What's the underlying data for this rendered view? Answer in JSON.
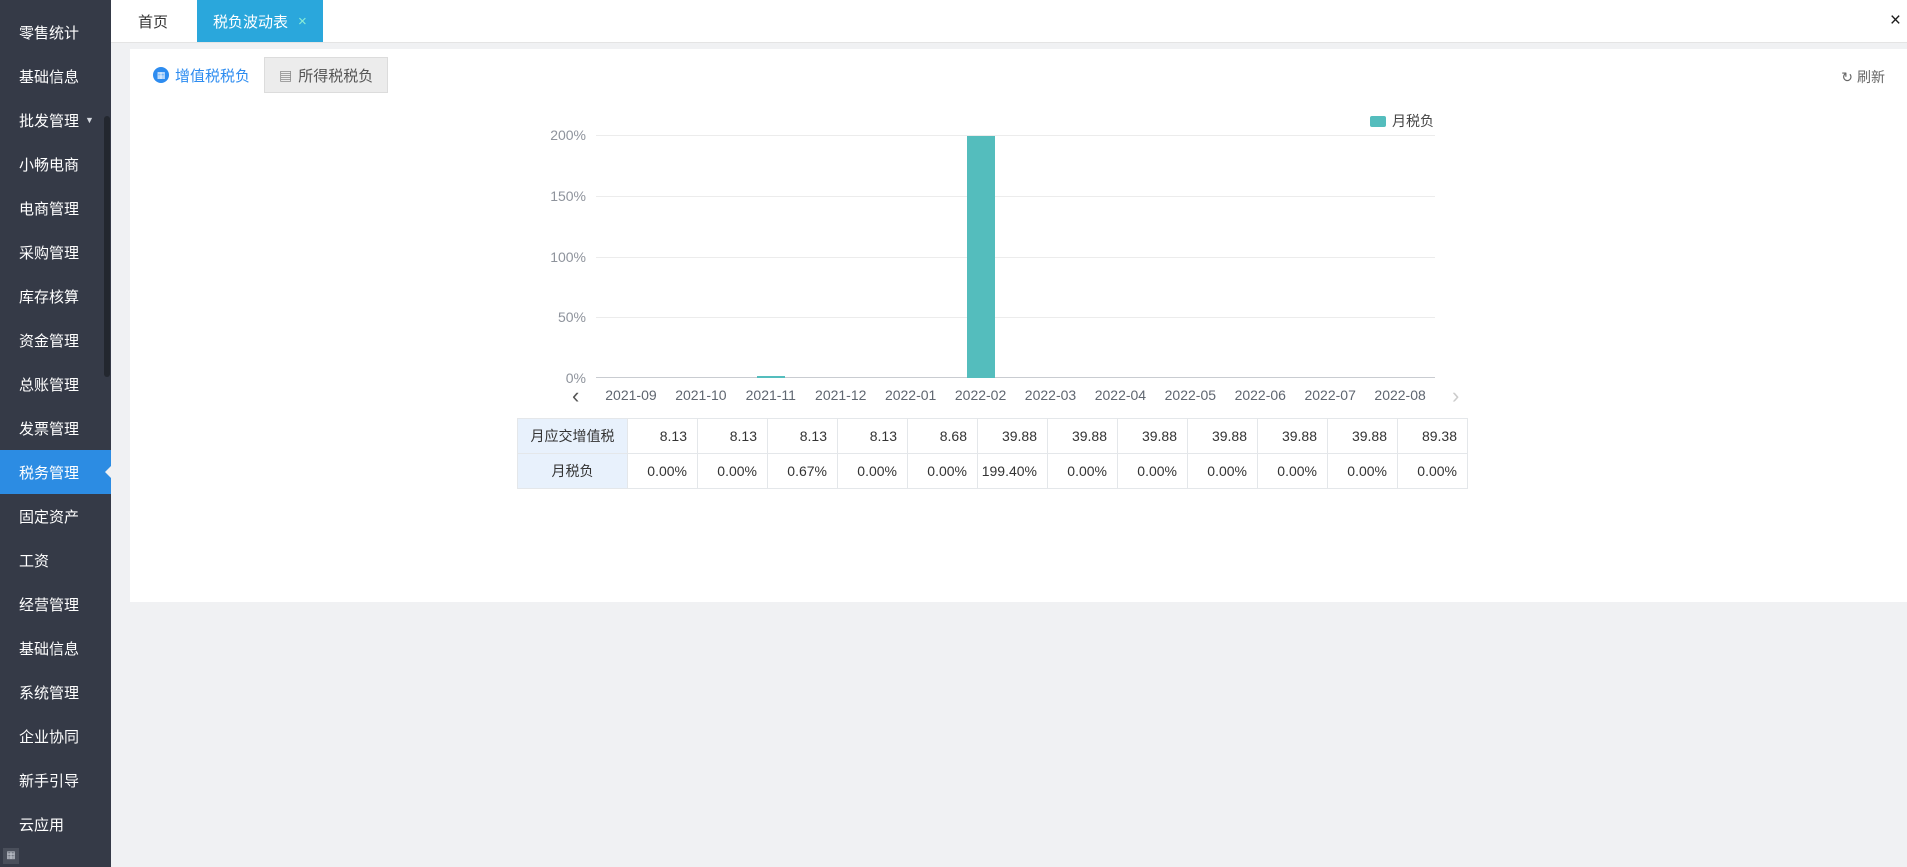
{
  "icons": {
    "close": "×",
    "refresh": "↻",
    "caret_down": "▼",
    "prev": "‹",
    "next": "›",
    "vat_tab": "▦",
    "income_tab": "▤",
    "collapse": "▦"
  },
  "topbar": {
    "tabs": [
      {
        "label": "首页",
        "active": false,
        "closable": false
      },
      {
        "label": "税负波动表",
        "active": true,
        "closable": true
      }
    ]
  },
  "sidebar": {
    "active_index": 10,
    "items": [
      {
        "label": "零售统计"
      },
      {
        "label": "基础信息"
      },
      {
        "label": "批发管理",
        "caret": true
      },
      {
        "label": "小畅电商"
      },
      {
        "label": "电商管理"
      },
      {
        "label": "采购管理"
      },
      {
        "label": "库存核算"
      },
      {
        "label": "资金管理"
      },
      {
        "label": "总账管理"
      },
      {
        "label": "发票管理"
      },
      {
        "label": "税务管理"
      },
      {
        "label": "固定资产"
      },
      {
        "label": "工资"
      },
      {
        "label": "经营管理"
      },
      {
        "label": "基础信息"
      },
      {
        "label": "系统管理"
      },
      {
        "label": "企业协同"
      },
      {
        "label": "新手引导"
      },
      {
        "label": "云应用"
      }
    ]
  },
  "panel": {
    "tabs": [
      {
        "label": "增值税税负",
        "active": true
      },
      {
        "label": "所得税税负",
        "active": false
      }
    ],
    "refresh_label": "刷新"
  },
  "chart_data": {
    "type": "bar",
    "title": "",
    "categories": [
      "2021-09",
      "2021-10",
      "2021-11",
      "2021-12",
      "2022-01",
      "2022-02",
      "2022-03",
      "2022-04",
      "2022-05",
      "2022-06",
      "2022-07",
      "2022-08"
    ],
    "series": [
      {
        "name": "月税负",
        "values": [
          0,
          0,
          0.67,
          0,
          0,
          199.4,
          0,
          0,
          0,
          0,
          0,
          0
        ]
      }
    ],
    "unit": "%",
    "xlabel": "",
    "ylabel": "",
    "ylim": [
      0,
      200
    ],
    "yticks": [
      "0%",
      "50%",
      "100%",
      "150%",
      "200%"
    ],
    "legend_position": "top-right",
    "grid": true,
    "bar_color": "#54bdbd"
  },
  "table": {
    "rows": [
      {
        "label": "月应交增值税",
        "values": [
          "8.13",
          "8.13",
          "8.13",
          "8.13",
          "8.68",
          "39.88",
          "39.88",
          "39.88",
          "39.88",
          "39.88",
          "39.88",
          "89.38"
        ]
      },
      {
        "label": "月税负",
        "values": [
          "0.00%",
          "0.00%",
          "0.67%",
          "0.00%",
          "0.00%",
          "199.40%",
          "0.00%",
          "0.00%",
          "0.00%",
          "0.00%",
          "0.00%",
          "0.00%"
        ]
      }
    ]
  },
  "colors": {
    "sidebar_bg": "#353a47",
    "sidebar_active": "#2c8ce3",
    "topbar_tab_active": "#2aa7dc",
    "bar": "#54bdbd",
    "table_label_bg": "#e8f1fc"
  }
}
